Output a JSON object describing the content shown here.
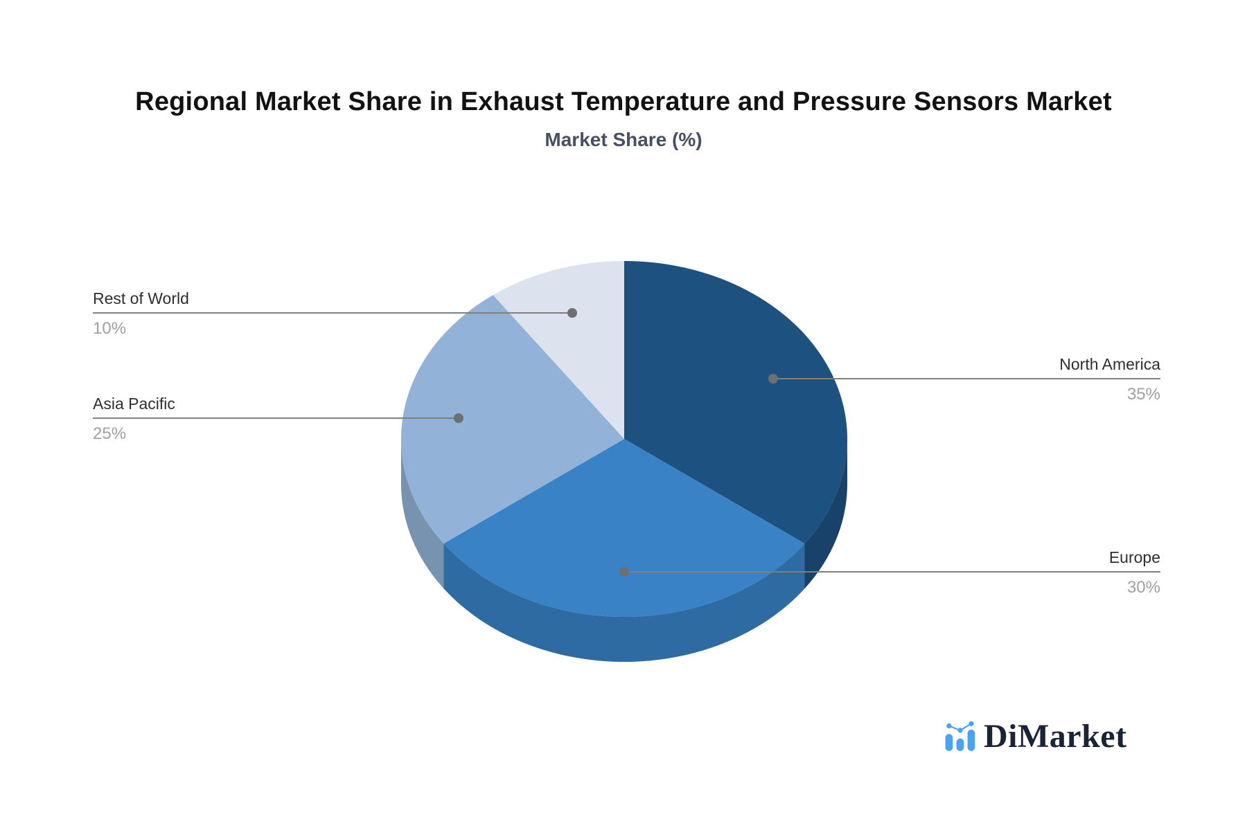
{
  "header": {
    "title": "Regional Market Share in Exhaust Temperature and Pressure Sensors Market",
    "subtitle": "Market Share (%)"
  },
  "chart_data": {
    "type": "pie",
    "style": "3d",
    "title": "Regional Market Share in Exhaust Temperature and Pressure Sensors Market",
    "subtitle": "Market Share (%)",
    "unit": "%",
    "start_angle_deg": 0,
    "direction": "clockwise",
    "legend_position": "callout-labels",
    "slices": [
      {
        "label": "North America",
        "value": 35,
        "value_text": "35%",
        "color": "#1D5180",
        "side_color": "#184269"
      },
      {
        "label": "Europe",
        "value": 30,
        "value_text": "30%",
        "color": "#3882C5",
        "side_color": "#2E6BA2"
      },
      {
        "label": "Asia Pacific",
        "value": 25,
        "value_text": "25%",
        "color": "#92B3D7",
        "side_color": "#7893B0"
      },
      {
        "label": "Rest of World",
        "value": 10,
        "value_text": "10%",
        "color": "#DCE3EF",
        "side_color": "#B9C3D4"
      }
    ]
  },
  "logo": {
    "text": "DiMarket",
    "icon": "mini-bar-line-chart-icon",
    "icon_color": "#4AA3F0",
    "text_color": "#1B2437"
  },
  "colors": {
    "background": "#FFFFFF",
    "title": "#121212",
    "subtitle": "#475063",
    "leader_line": "#7F7F7F",
    "callout_dot": "#6F6F6F",
    "label_text": "#2F2F2F",
    "value_text": "#9FA0A4"
  }
}
